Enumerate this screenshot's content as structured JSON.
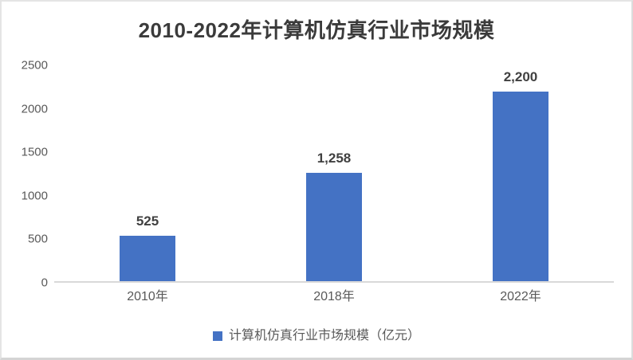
{
  "colors": {
    "bar": "#4472c4",
    "title_text": "#3b3b3b",
    "axis_text": "#595959",
    "baseline": "#d9d9d9"
  },
  "chart_data": {
    "type": "bar",
    "title": "2010-2022年计算机仿真行业市场规模",
    "categories": [
      "2010年",
      "2018年",
      "2022年"
    ],
    "values": [
      525,
      1258,
      2200
    ],
    "value_labels": [
      "525",
      "1,258",
      "2,200"
    ],
    "series": [
      {
        "name": "计算机仿真行业市场规模（亿元）",
        "values": [
          525,
          1258,
          2200
        ]
      }
    ],
    "legend_label": "计算机仿真行业市场规模（亿元）",
    "legend_position": "bottom",
    "xlabel": "",
    "ylabel": "",
    "ylim": [
      0,
      2500
    ],
    "yticks": [
      0,
      500,
      1000,
      1500,
      2000,
      2500
    ],
    "grid": false
  }
}
